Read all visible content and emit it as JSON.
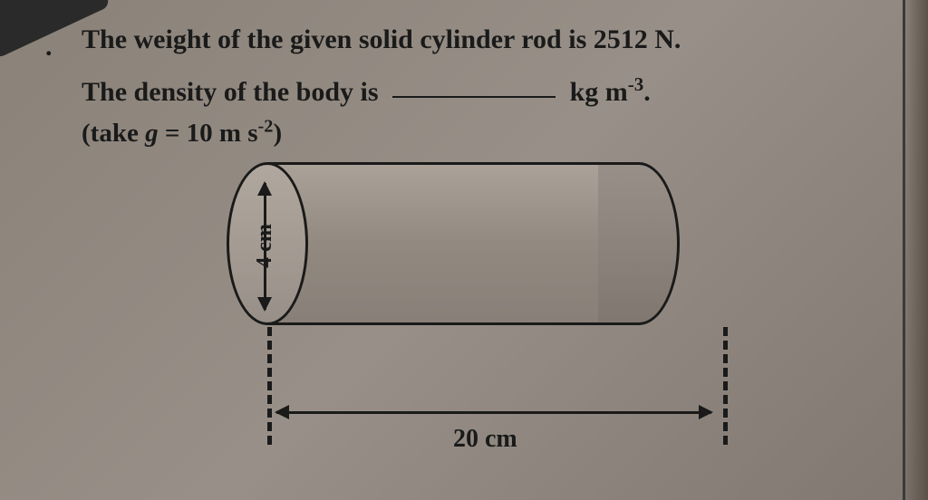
{
  "question": {
    "line1_prefix": "The weight of the given solid cylinder rod is ",
    "weight_value": "2512 N.",
    "line2_prefix": "The density of the body is ",
    "unit": "kg m",
    "unit_exponent": "-3",
    "unit_suffix": ".",
    "hint_prefix": "(take ",
    "hint_var": "g",
    "hint_equals": " = 10 m s",
    "hint_exponent": "-2",
    "hint_suffix": ")"
  },
  "diagram": {
    "diameter_label": "4 cm",
    "length_label": "20 cm",
    "cylinder_diameter_cm": 4,
    "cylinder_length_cm": 20
  },
  "styling": {
    "text_color": "#1a1a1a",
    "background_base": "#989088",
    "font_size_main": 30,
    "font_size_hint": 29,
    "font_size_diagram_label": 26,
    "font_weight": "600",
    "line_color": "#1a1a1a",
    "dash_color": "#1a1a1a"
  }
}
